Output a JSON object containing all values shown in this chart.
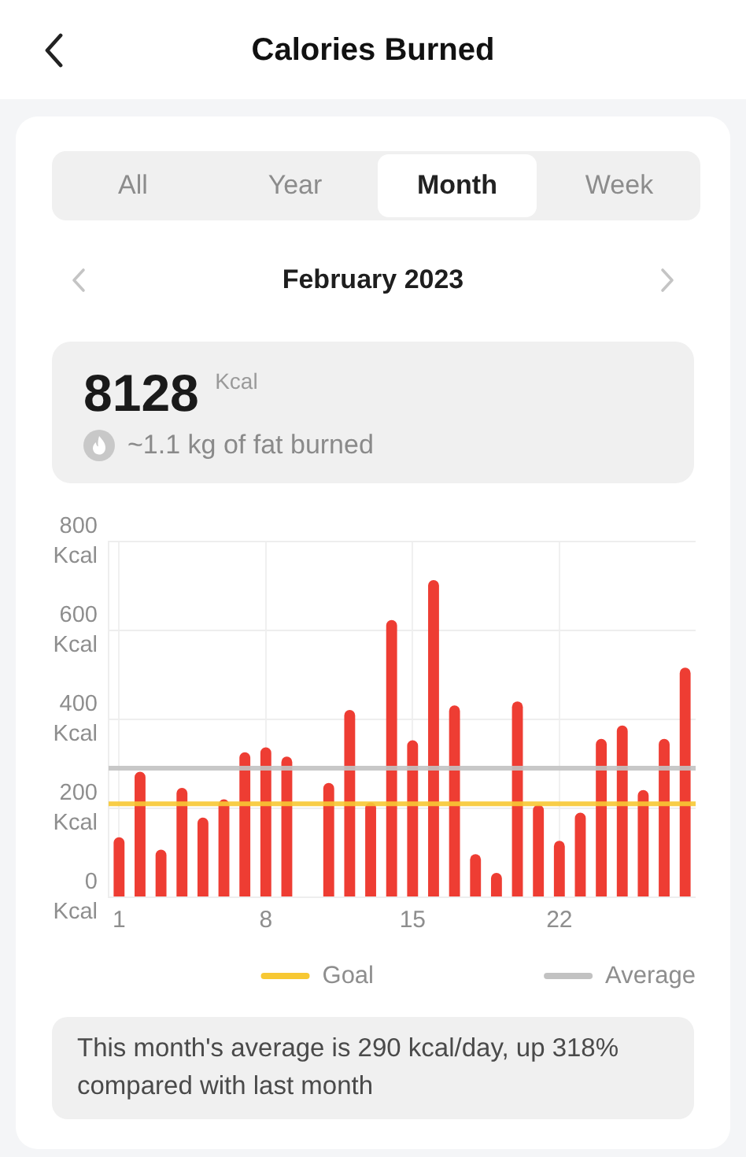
{
  "chart_data": {
    "type": "bar",
    "title": "Calories Burned",
    "subtitle": "February 2023",
    "categories": [
      "1",
      null,
      null,
      null,
      null,
      null,
      null,
      "8",
      null,
      null,
      null,
      null,
      null,
      null,
      "15",
      null,
      null,
      null,
      null,
      null,
      null,
      "22",
      null,
      null,
      null,
      null,
      null,
      null
    ],
    "values": [
      135,
      282,
      107,
      246,
      179,
      220,
      326,
      337,
      316,
      0,
      257,
      421,
      213,
      623,
      353,
      713,
      431,
      97,
      55,
      440,
      208,
      127,
      190,
      356,
      386,
      241,
      356,
      516
    ],
    "color": "#ee3d33",
    "ylim": [
      0,
      800
    ],
    "yticks": [
      {
        "value": 0,
        "label": "0 Kcal"
      },
      {
        "value": 200,
        "label": "200 Kcal"
      },
      {
        "value": 400,
        "label": "400 Kcal"
      },
      {
        "value": 600,
        "label": "600 Kcal"
      },
      {
        "value": 800,
        "label": "800 Kcal"
      }
    ],
    "grid": true,
    "legend": "bottom",
    "ref_lines": [
      {
        "axis": "y",
        "value": 210,
        "label": "Goal",
        "color": "#f7c833"
      },
      {
        "axis": "y",
        "value": 290,
        "label": "Average",
        "color": "#c2c2c2"
      }
    ],
    "annotations": [
      "All",
      "Year",
      "Month",
      "Week",
      "8128 $^{Kcal}$",
      "~1.1 kg of fat burned",
      "This month's average is 290 kcal/day, up 318% compared with last month"
    ]
  }
}
